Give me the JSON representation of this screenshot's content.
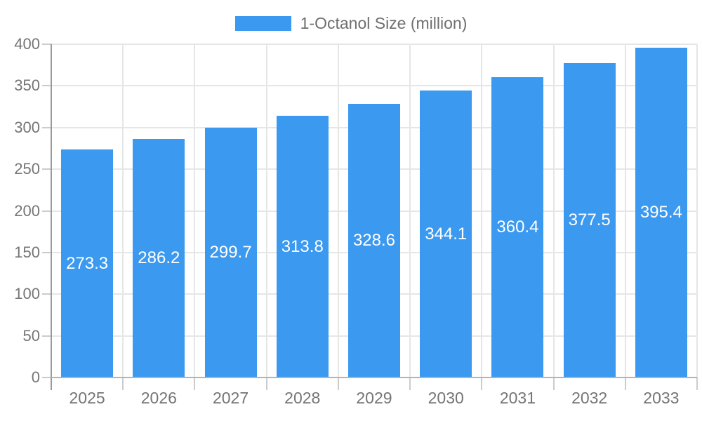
{
  "legend": {
    "label": "1-Octanol Size (million)"
  },
  "chart_data": {
    "type": "bar",
    "title": "1-Octanol Size (million)",
    "categories": [
      "2025",
      "2026",
      "2027",
      "2028",
      "2029",
      "2030",
      "2031",
      "2032",
      "2033"
    ],
    "values": [
      273.3,
      286.2,
      299.7,
      313.8,
      328.6,
      344.1,
      360.4,
      377.5,
      395.4
    ],
    "value_labels": [
      "273.3",
      "286.2",
      "299.7",
      "313.8",
      "328.6",
      "344.1",
      "360.4",
      "377.5",
      "395.4"
    ],
    "xlabel": "",
    "ylabel": "",
    "ylim": [
      0,
      400
    ],
    "ytick_step": 50,
    "ytick_labels": [
      "0",
      "50",
      "100",
      "150",
      "200",
      "250",
      "300",
      "350",
      "400"
    ],
    "grid": "horizontal gridlines every 50, vertical gridlines at category boundaries",
    "legend_position": "top-center",
    "colors": {
      "bar": "#3B99F0",
      "value_label_text": "#ffffff",
      "axis_text": "#757575",
      "legend_text": "#6f6f6f",
      "gridline": "#e6e6e6",
      "baseline": "#b3b3b3",
      "y_axis_line": "#9a9a9a",
      "tick": "#cccccc",
      "background": "#ffffff"
    }
  }
}
